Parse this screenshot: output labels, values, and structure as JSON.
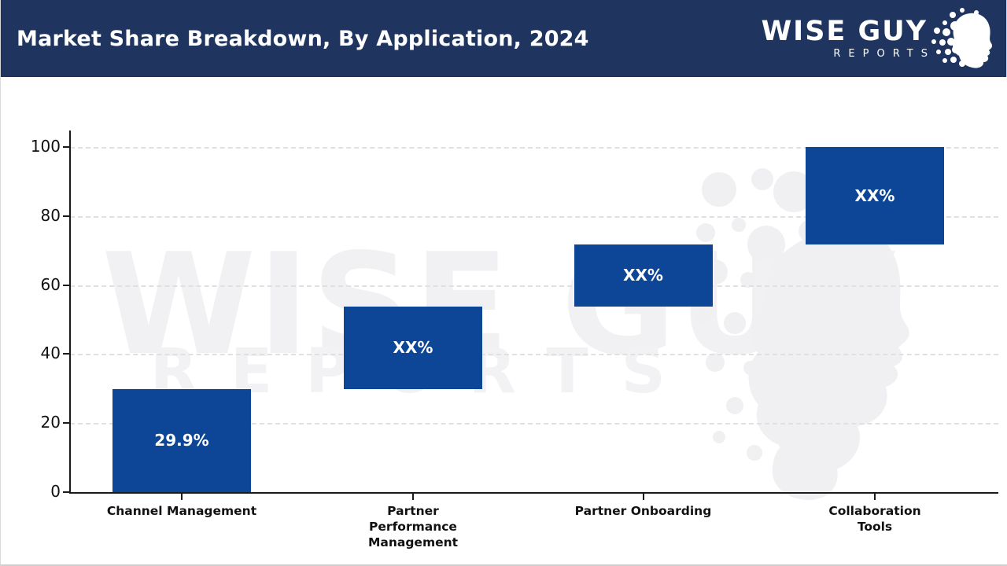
{
  "header": {
    "title": "Market Share Breakdown, By Application, 2024",
    "logo": {
      "line1": "WISE GUY",
      "line2": "REPORTS"
    },
    "bg_color": "#1f3560"
  },
  "watermark": {
    "line1": "WISE GUY",
    "line2": "REPORTS"
  },
  "chart_data": {
    "type": "bar",
    "subtype": "floating-waterfall",
    "title": "Market Share Breakdown, By Application, 2024",
    "categories": [
      {
        "label": "Channel Management",
        "lines": [
          "Channel Management"
        ]
      },
      {
        "label": "Partner Performance Management",
        "lines": [
          "Partner",
          "Performance",
          "Management"
        ]
      },
      {
        "label": "Partner Onboarding",
        "lines": [
          "Partner Onboarding"
        ]
      },
      {
        "label": "Collaboration Tools",
        "lines": [
          "Collaboration",
          "Tools"
        ]
      }
    ],
    "segments": [
      {
        "start": 0,
        "end": 29.9,
        "label": "29.9%"
      },
      {
        "start": 29.9,
        "end": 53.8,
        "label": "XX%"
      },
      {
        "start": 53.8,
        "end": 71.8,
        "label": "XX%"
      },
      {
        "start": 71.8,
        "end": 100,
        "label": "XX%"
      }
    ],
    "ylim": [
      0,
      100
    ],
    "yticks": [
      0,
      20,
      40,
      60,
      80,
      100
    ],
    "xlabel": "",
    "ylabel": "",
    "grid": "horizontal-dashed",
    "legend": "none",
    "colors": {
      "bar": "#0d4696",
      "bar_label": "#ffffff",
      "axis": "#1a1a1a",
      "grid": "#e0e0e0",
      "watermark": "#f1f1f4"
    }
  }
}
